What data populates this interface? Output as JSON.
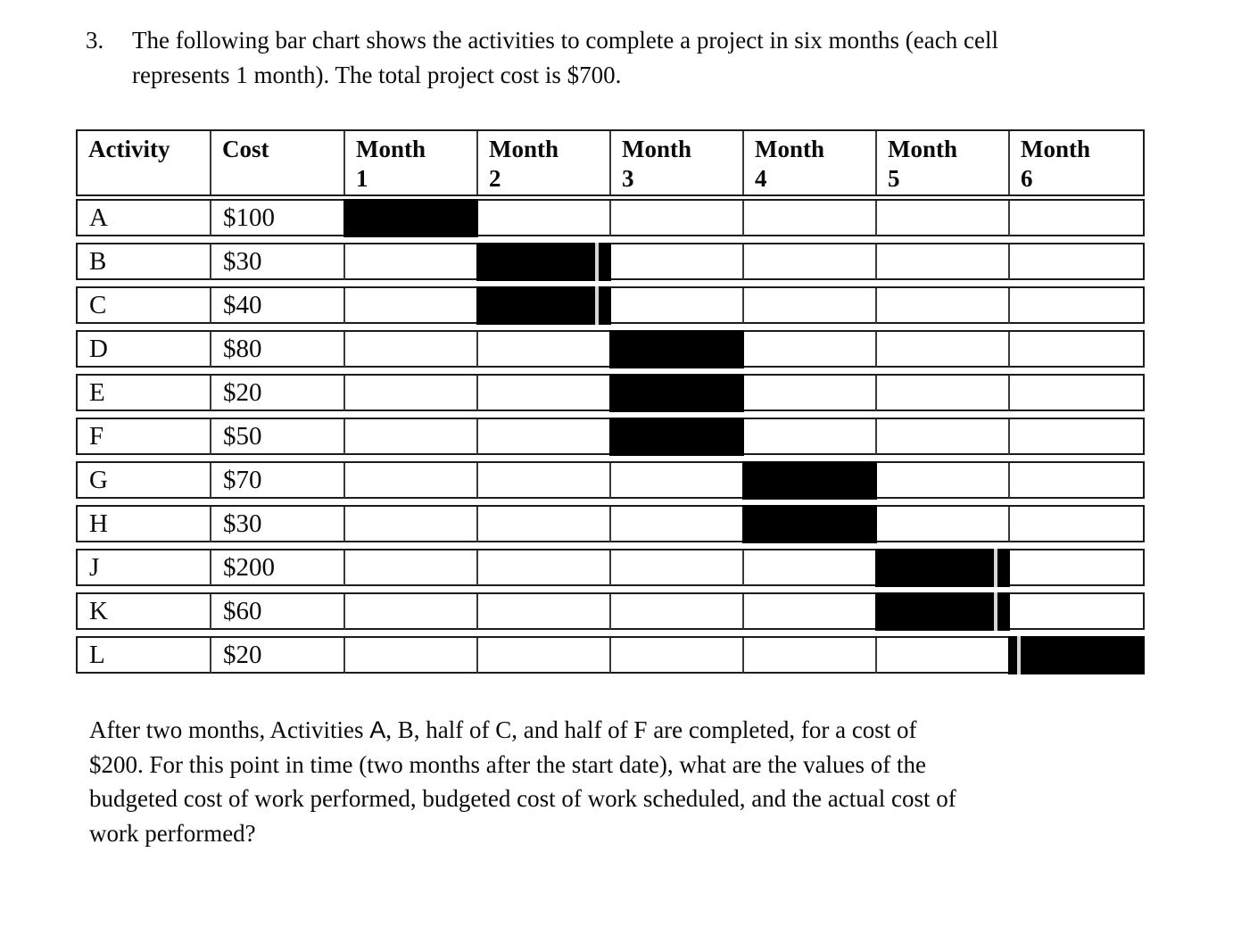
{
  "title": {
    "number": "3.",
    "line1": "The following bar chart shows the activities to complete a project in six months (each cell",
    "line2": "represents 1 month). The total project cost is $700."
  },
  "table": {
    "headers": {
      "activity": "Activity",
      "cost": "Cost",
      "month_word": "Month",
      "month_numbers": [
        "1",
        "2",
        "3",
        "4",
        "5",
        "6"
      ]
    },
    "rows": [
      {
        "activity": "A",
        "cost": "$100",
        "bar_month": 1,
        "artifact": "none"
      },
      {
        "activity": "B",
        "cost": "$30",
        "bar_month": 2,
        "artifact": "right"
      },
      {
        "activity": "C",
        "cost": "$40",
        "bar_month": 2,
        "artifact": "right"
      },
      {
        "activity": "D",
        "cost": "$80",
        "bar_month": 3,
        "artifact": "none"
      },
      {
        "activity": "E",
        "cost": "$20",
        "bar_month": 3,
        "artifact": "none"
      },
      {
        "activity": "F",
        "cost": "$50",
        "bar_month": 3,
        "artifact": "none"
      },
      {
        "activity": "G",
        "cost": "$70",
        "bar_month": 4,
        "artifact": "none"
      },
      {
        "activity": "H",
        "cost": "$30",
        "bar_month": 4,
        "artifact": "none"
      },
      {
        "activity": "J",
        "cost": "$200",
        "bar_month": 5,
        "artifact": "right"
      },
      {
        "activity": "K",
        "cost": "$60",
        "bar_month": 5,
        "artifact": "right"
      },
      {
        "activity": "L",
        "cost": "$20",
        "bar_month": 6,
        "artifact": "left"
      }
    ]
  },
  "question": {
    "line1_pre": "After two months, Activities ",
    "line1_a": "A",
    "line1_rest": ", B, half of C, and half of F are completed, for a cost of",
    "line2": "$200. For this point in time (two months after the start date), what are the values of the",
    "line3": "budgeted cost of work performed, budgeted cost of work scheduled, and the actual cost of",
    "line4": "work performed?"
  },
  "colors": {
    "background": "#ffffff",
    "text": "#0a0a0a",
    "bar": "#000000",
    "border": "#1c1c1c"
  },
  "chart_data": {
    "type": "table",
    "title": "Project activity bar chart (each cell represents 1 month)",
    "columns": [
      "Activity",
      "Cost",
      "Month 1",
      "Month 2",
      "Month 3",
      "Month 4",
      "Month 5",
      "Month 6"
    ],
    "activities": [
      "A",
      "B",
      "C",
      "D",
      "E",
      "F",
      "G",
      "H",
      "J",
      "K",
      "L"
    ],
    "costs_dollars": [
      100,
      30,
      40,
      80,
      20,
      50,
      70,
      30,
      200,
      60,
      20
    ],
    "scheduled_month": [
      1,
      2,
      2,
      3,
      3,
      3,
      4,
      4,
      5,
      5,
      6
    ],
    "total_project_cost_dollars": 700,
    "months_range": [
      1,
      6
    ]
  }
}
